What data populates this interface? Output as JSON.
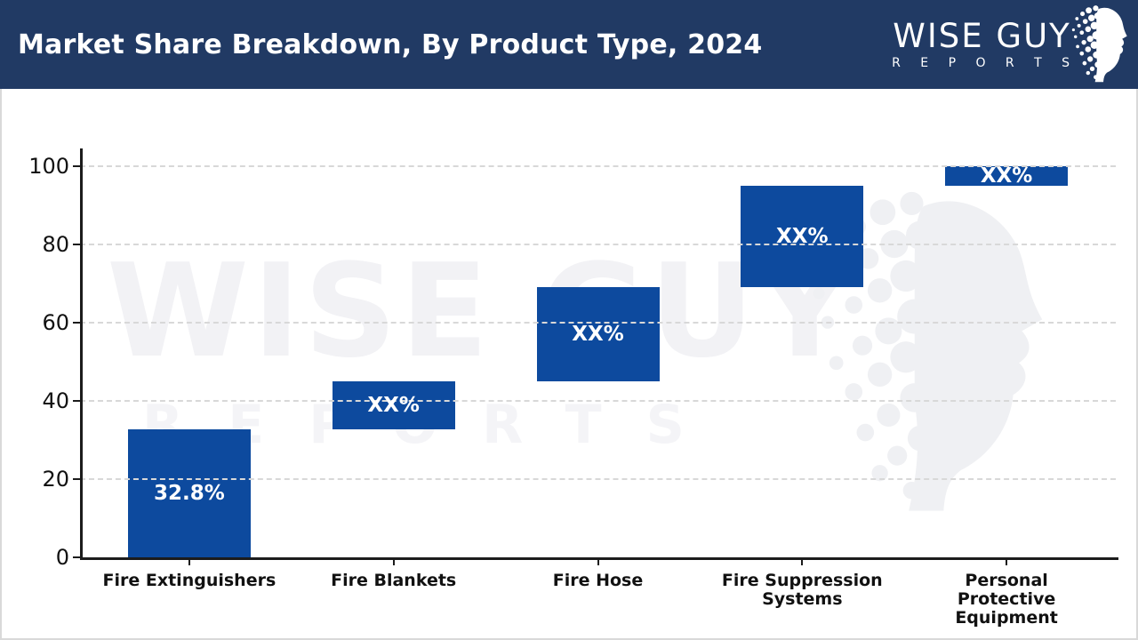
{
  "header": {
    "title": "Market Share Breakdown, By Product Type, 2024",
    "logo": {
      "line1": "WISE GUY",
      "line2": "R E P O R T S"
    }
  },
  "watermark": {
    "line1": "WISE GUY",
    "line2": "REPORTS"
  },
  "chart_data": {
    "type": "bar",
    "subtype": "waterfall",
    "title": "Market Share Breakdown, By Product Type, 2024",
    "xlabel": "",
    "ylabel": "",
    "categories": [
      "Fire Extinguishers",
      "Fire Blankets",
      "Fire Hose",
      "Fire Suppression\nSystems",
      "Personal\nProtective\nEquipment"
    ],
    "segments": [
      {
        "category": "Fire Extinguishers",
        "start": 0,
        "end": 32.8,
        "value_label": "32.8%"
      },
      {
        "category": "Fire Blankets",
        "start": 32.8,
        "end": 45,
        "value_label": "XX%"
      },
      {
        "category": "Fire Hose",
        "start": 45,
        "end": 69,
        "value_label": "XX%"
      },
      {
        "category": "Fire Suppression Systems",
        "start": 69,
        "end": 95,
        "value_label": "XX%"
      },
      {
        "category": "Personal Protective Equipment",
        "start": 95,
        "end": 100,
        "value_label": "XX%"
      }
    ],
    "yticks": [
      0,
      20,
      40,
      60,
      80,
      100
    ],
    "ylim": [
      0,
      104.5
    ],
    "grid": "horizontal-dashed",
    "legend": "none",
    "colors": {
      "bar": "#0d4a9e",
      "bar_label": "#ffffff",
      "grid": "#d8d8d8",
      "axis": "#1c1c1c",
      "header_bg": "#213a64",
      "watermark": "#f2f2f5"
    }
  }
}
